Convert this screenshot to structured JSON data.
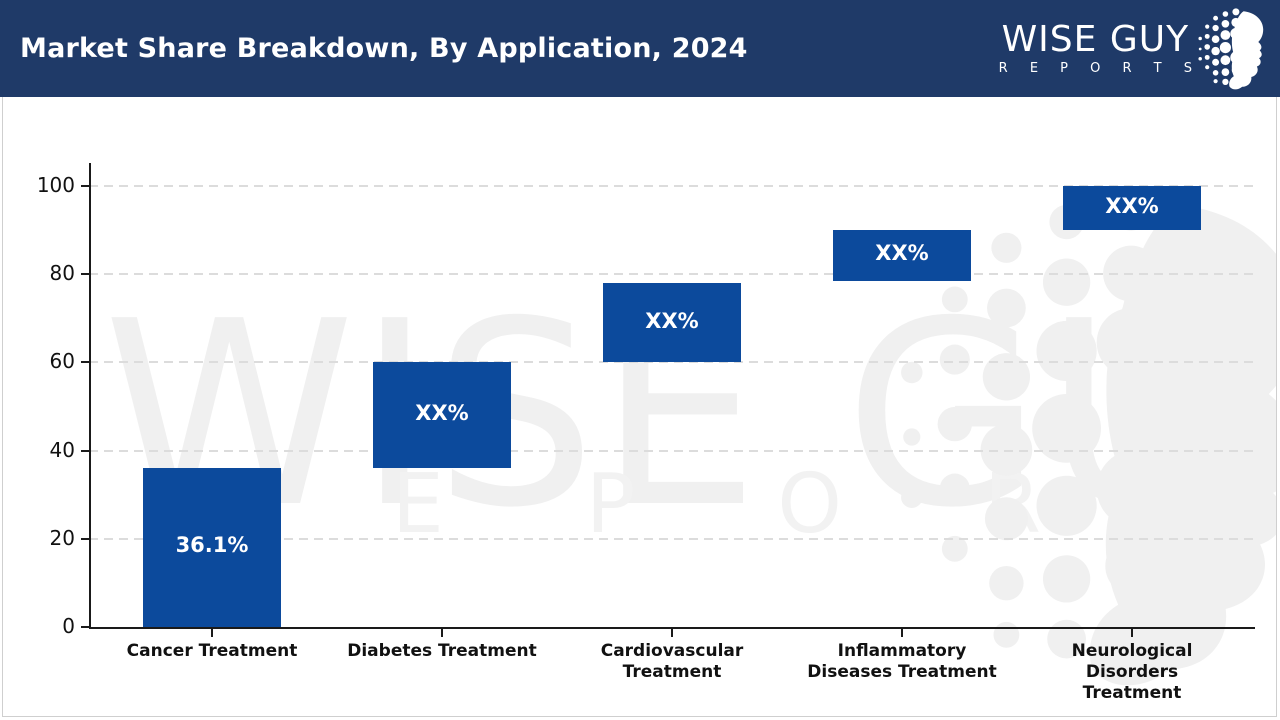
{
  "header": {
    "title": "Market Share Breakdown, By Application, 2024",
    "logo": {
      "line1": "WISE GUY",
      "line2": "R E P O R T S"
    }
  },
  "watermark": {
    "line1": "WISE GUY",
    "line2": "R E P O R T S"
  },
  "colors": {
    "header_bg": "#1f3a68",
    "bar": "#0c4a9c",
    "bar_label": "#ffffff",
    "gridline": "#dcdcdc",
    "axis": "#1a1a1a",
    "watermark": "#f0f0f0"
  },
  "chart_data": {
    "type": "bar",
    "subtype": "waterfall",
    "title": "Market Share Breakdown, By Application, 2024",
    "categories": [
      "Cancer Treatment",
      "Diabetes Treatment",
      "Cardiovascular Treatment",
      "Inflammatory Diseases Treatment",
      "Neurological Disorders Treatment"
    ],
    "category_label_lines": [
      [
        "Cancer Treatment"
      ],
      [
        "Diabetes Treatment"
      ],
      [
        "Cardiovascular",
        "Treatment"
      ],
      [
        "Inflammatory",
        "Diseases Treatment"
      ],
      [
        "Neurological",
        "Disorders",
        "Treatment"
      ]
    ],
    "bar_labels": [
      "36.1%",
      "XX%",
      "XX%",
      "XX%",
      "XX%"
    ],
    "segments": [
      {
        "start": 0,
        "end": 36.1
      },
      {
        "start": 36.1,
        "end": 60
      },
      {
        "start": 60,
        "end": 78
      },
      {
        "start": 78.5,
        "end": 90
      },
      {
        "start": 90,
        "end": 100
      }
    ],
    "y_ticks": [
      0,
      20,
      40,
      60,
      80,
      100
    ],
    "ylim": [
      0,
      105
    ],
    "xlabel": "",
    "ylabel": "",
    "grid": "horizontal-dashed",
    "legend": "none"
  }
}
